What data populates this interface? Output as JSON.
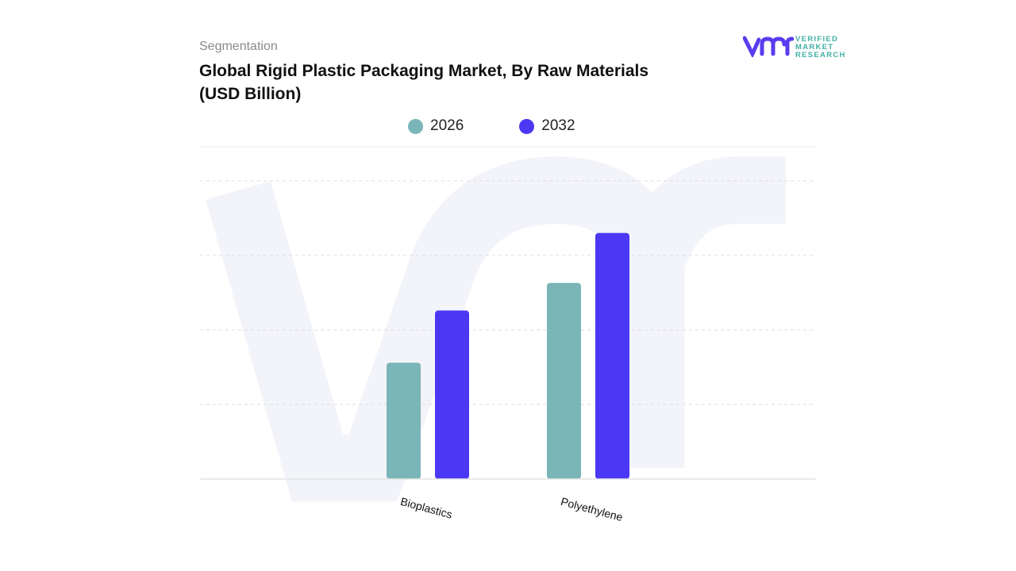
{
  "header": {
    "segment_label": "Segmentation",
    "title": "Global Rigid Plastic Packaging Market, By Raw Materials (USD Billion)"
  },
  "logo": {
    "text_lines": [
      "VERIFIED",
      "MARKET",
      "RESEARCH"
    ],
    "mark": "vmr"
  },
  "chart_data": {
    "type": "bar",
    "title": "Global Rigid Plastic Packaging Market, By Raw Materials (USD Billion)",
    "categories": [
      "Bioplastics",
      "Polyethylene"
    ],
    "series": [
      {
        "name": "2026",
        "color": "#7ab5b8",
        "values": [
          1.56,
          2.63
        ]
      },
      {
        "name": "2032",
        "color": "#4b38f5",
        "values": [
          2.26,
          3.3
        ]
      }
    ],
    "ylim": [
      0,
      4
    ],
    "y_tick_labels_shown": false,
    "grid": true,
    "legend_position": "top-center",
    "xlabel": "",
    "ylabel": ""
  }
}
